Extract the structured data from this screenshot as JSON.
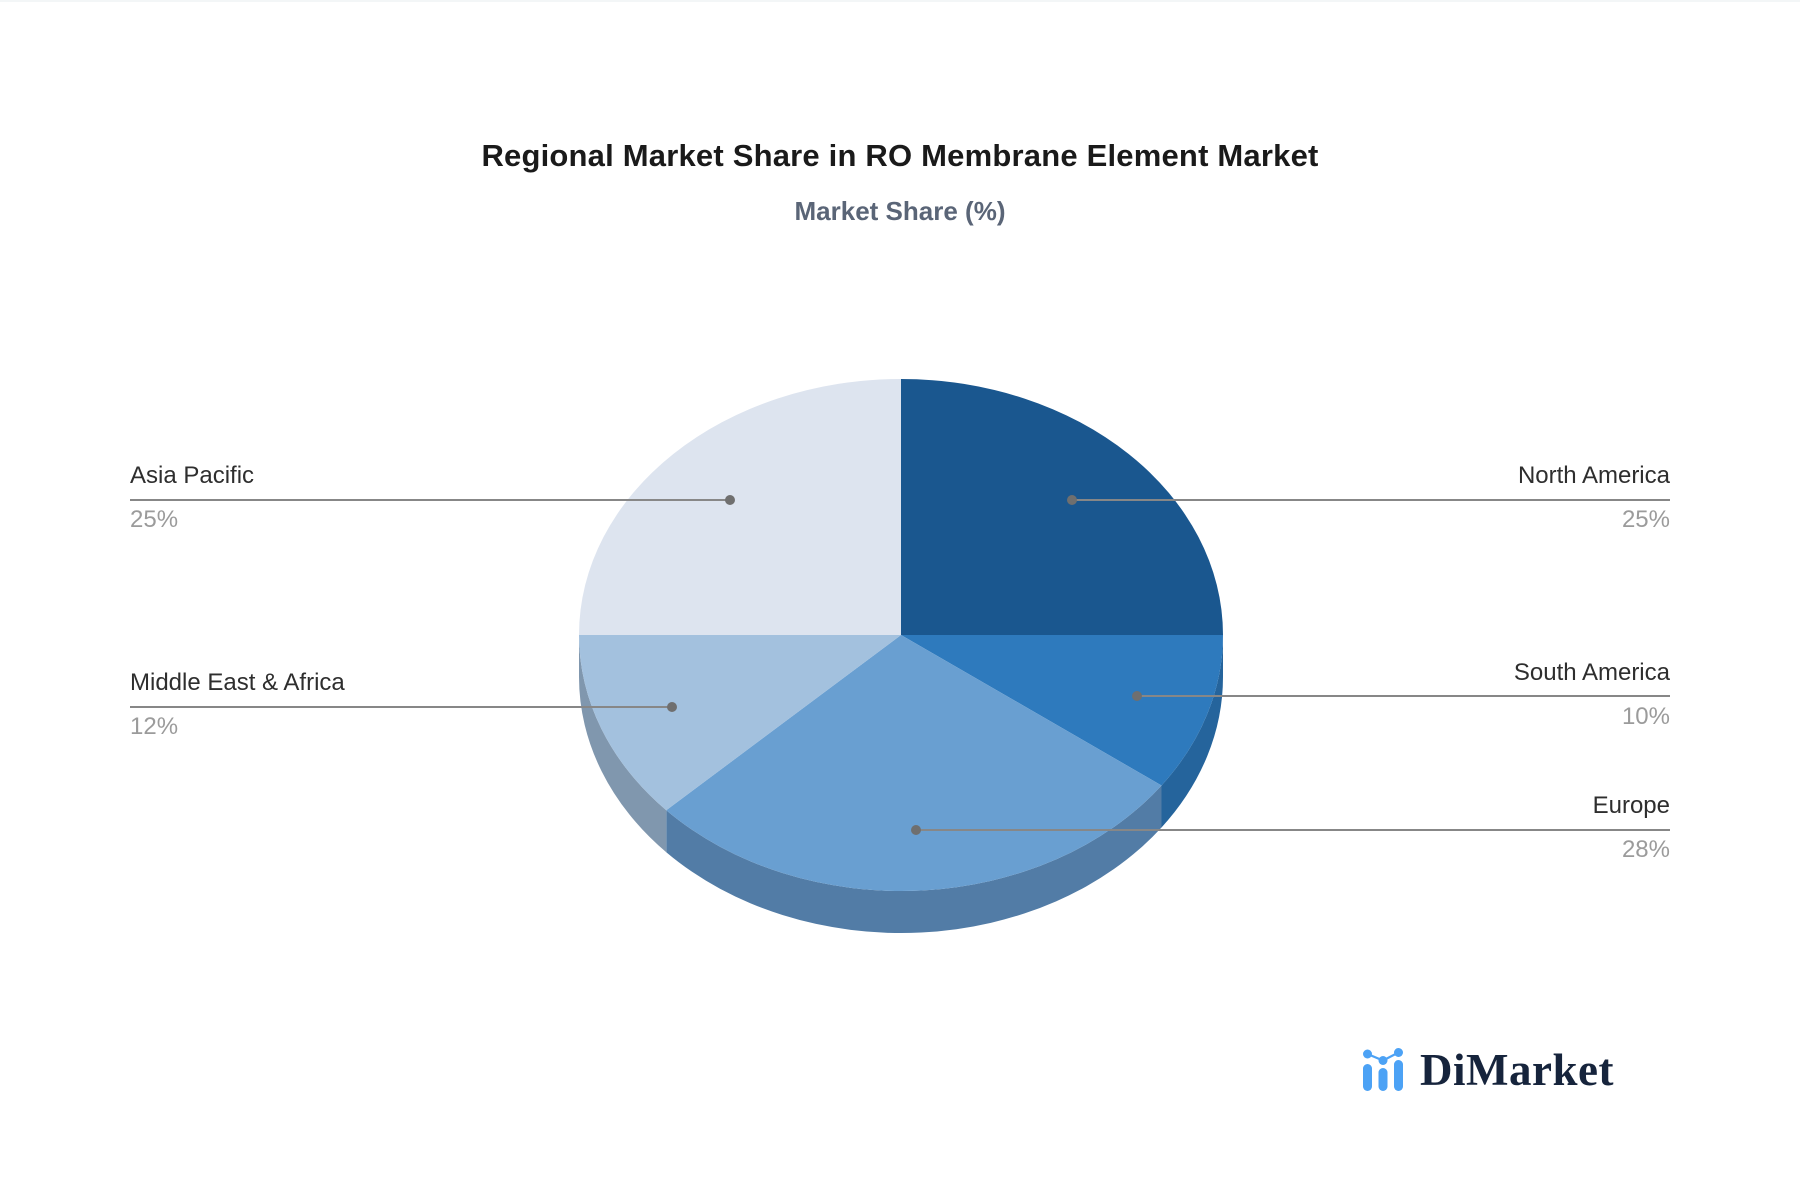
{
  "title": "Regional Market Share in RO Membrane Element Market",
  "subtitle": "Market Share (%)",
  "brand": {
    "name": "DiMarket"
  },
  "chart_data": {
    "type": "pie",
    "title": "Regional Market Share in RO Membrane Element Market",
    "subtitle": "Market Share (%)",
    "unit": "%",
    "style": "3d-pie",
    "start_angle_deg_clockwise_from_top": 0,
    "legend_position": "callout-labels",
    "grid": false,
    "slices": [
      {
        "label": "North America",
        "value": 25,
        "display": "25%",
        "color": "#1A578F",
        "side_color": "#25619B",
        "callout_side": "right"
      },
      {
        "label": "South America",
        "value": 10,
        "display": "10%",
        "color": "#2E7ABD",
        "side_color": "#25649C",
        "callout_side": "right"
      },
      {
        "label": "Europe",
        "value": 28,
        "display": "28%",
        "color": "#699FD1",
        "side_color": "#527CA6",
        "callout_side": "right"
      },
      {
        "label": "Middle East & Africa",
        "value": 12,
        "display": "12%",
        "color": "#A3C1DE",
        "side_color": "#8097AE",
        "callout_side": "left"
      },
      {
        "label": "Asia Pacific",
        "value": 25,
        "display": "25%",
        "color": "#DDE4EF",
        "side_color": "#B2BFD1",
        "callout_side": "left"
      }
    ],
    "leader_line_color": "#878787",
    "leader_dot_color": "#6f6f6f"
  }
}
